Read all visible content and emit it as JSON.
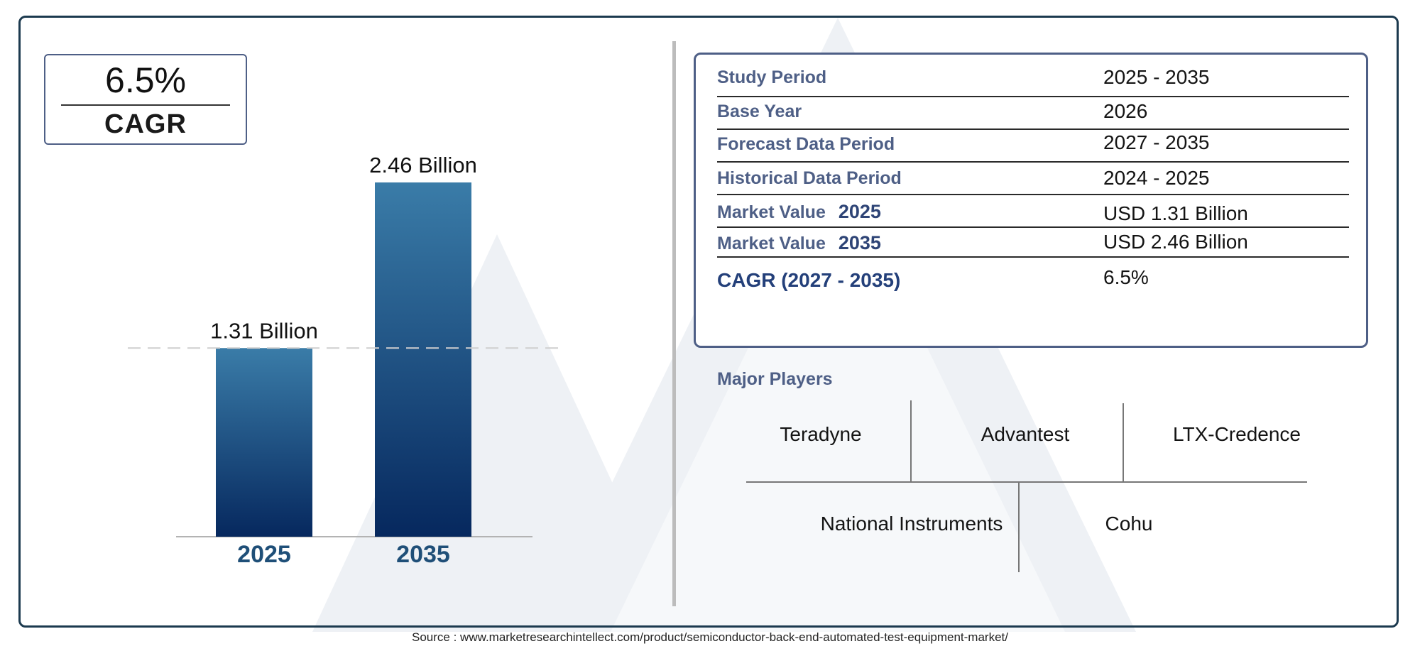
{
  "cagr_card": {
    "value": "6.5%",
    "label": "CAGR"
  },
  "chart_data": {
    "type": "bar",
    "categories": [
      "2025",
      "2035"
    ],
    "values": [
      1.31,
      2.46
    ],
    "data_labels": [
      "1.31 Billion",
      "2.46 Billion"
    ],
    "unit": "Billion",
    "ylim": [
      0,
      2.46
    ],
    "grid": false,
    "reference_line": "dashed horizontal at 2025 value",
    "bar_color_top": "#3a7ca8",
    "bar_color_bottom": "#06285e",
    "tick_color": "#1f4f78"
  },
  "info_table": {
    "rows": [
      {
        "label": "Study Period",
        "year": "",
        "value": "2025 - 2035"
      },
      {
        "label": "Base Year",
        "year": "",
        "value": "2026"
      },
      {
        "label": "Forecast Data Period",
        "year": "",
        "value": "2027 - 2035"
      },
      {
        "label": "Historical Data Period",
        "year": "",
        "value": "2024 - 2025"
      },
      {
        "label": "Market Value",
        "year": "2025",
        "value": "USD 1.31 Billion"
      },
      {
        "label": "Market Value",
        "year": "2035",
        "value": "USD 2.46 Billion"
      },
      {
        "label": "CAGR (2027 - 2035)",
        "year": "",
        "value": "6.5%"
      }
    ]
  },
  "major_players": {
    "title": "Major Players",
    "names": [
      "Teradyne",
      "Advantest",
      "LTX-Credence",
      "National Instruments",
      "Cohu"
    ]
  },
  "source": "Source : www.marketresearchintellect.com/product/semiconductor-back-end-automated-test-equipment-market/",
  "colors": {
    "frame": "#1c3a4f",
    "accent": "#4e5f86",
    "watermark": "#eef1f5"
  }
}
